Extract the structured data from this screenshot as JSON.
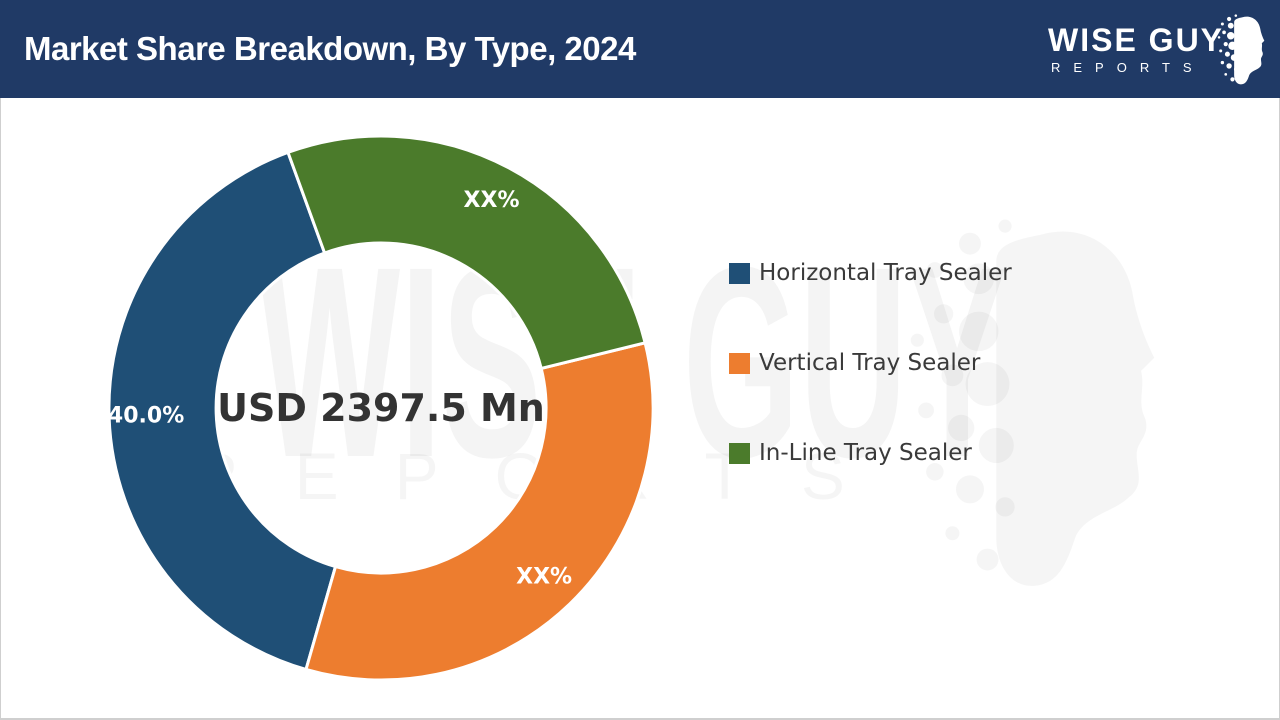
{
  "header": {
    "title": "Market Share Breakdown, By Type, 2024",
    "logo": {
      "line1": "WISE GUY",
      "line2": "REPORTS"
    }
  },
  "watermark": {
    "line1": "WISE GUY",
    "line2": "REPORTS"
  },
  "chart_data": {
    "type": "pie",
    "subtype": "donut",
    "title": "Market Share Breakdown, By Type, 2024",
    "center_label": "USD 2397.5 Mn",
    "start_angle_deg": 110,
    "direction": "counterclockwise",
    "legend_position": "right",
    "series": [
      {
        "name": "Horizontal Tray Sealer",
        "value_pct": 40.0,
        "label": "40.0%",
        "color": "#1f4f76"
      },
      {
        "name": "Vertical Tray Sealer",
        "value_pct": 33.3,
        "label": "XX%",
        "color": "#ed7d2f"
      },
      {
        "name": "In-Line Tray Sealer",
        "value_pct": 26.7,
        "label": "XX%",
        "color": "#4b7b2b"
      }
    ]
  },
  "colors": {
    "header_bg": "#203a66",
    "border": "#cfcfcf",
    "text_dark": "#333333",
    "slice_label": "#ffffff"
  }
}
